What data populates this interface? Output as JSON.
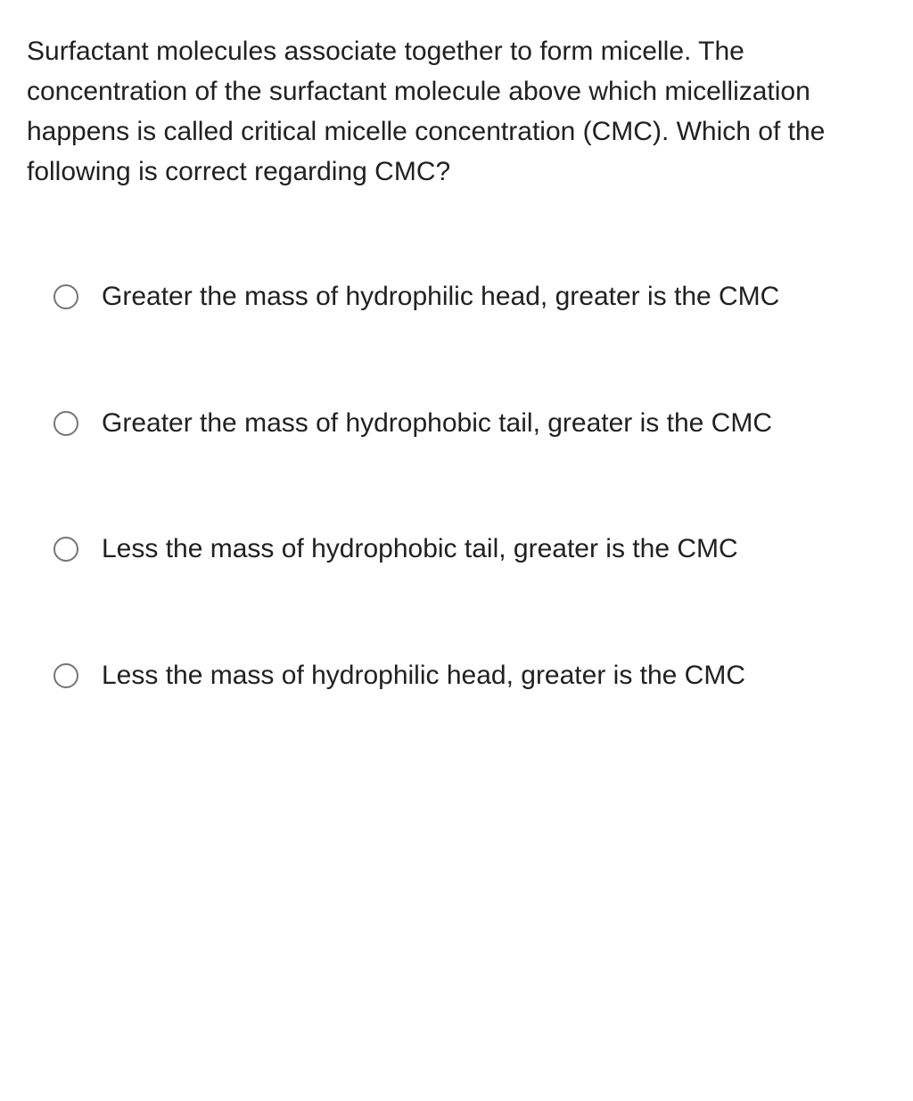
{
  "question": {
    "text": "Surfactant molecules associate together to form micelle. The concentration of the surfactant molecule above which micellization happens is called critical micelle concentration (CMC). Which of the following is correct regarding CMC?"
  },
  "options": [
    {
      "label": "Greater the mass of hydrophilic head, greater is the CMC",
      "selected": false
    },
    {
      "label": "Greater the mass of hydrophobic tail, greater is the CMC",
      "selected": false
    },
    {
      "label": "Less the mass of hydrophobic tail, greater is the CMC",
      "selected": false
    },
    {
      "label": "Less the mass of hydrophilic head, greater is the CMC",
      "selected": false
    }
  ],
  "colors": {
    "background": "#ffffff",
    "text": "#212121",
    "radio_border": "#757575"
  },
  "typography": {
    "font_family": "Arial, Helvetica, sans-serif",
    "question_fontsize": 30,
    "option_fontsize": 30,
    "line_height": 1.5
  }
}
